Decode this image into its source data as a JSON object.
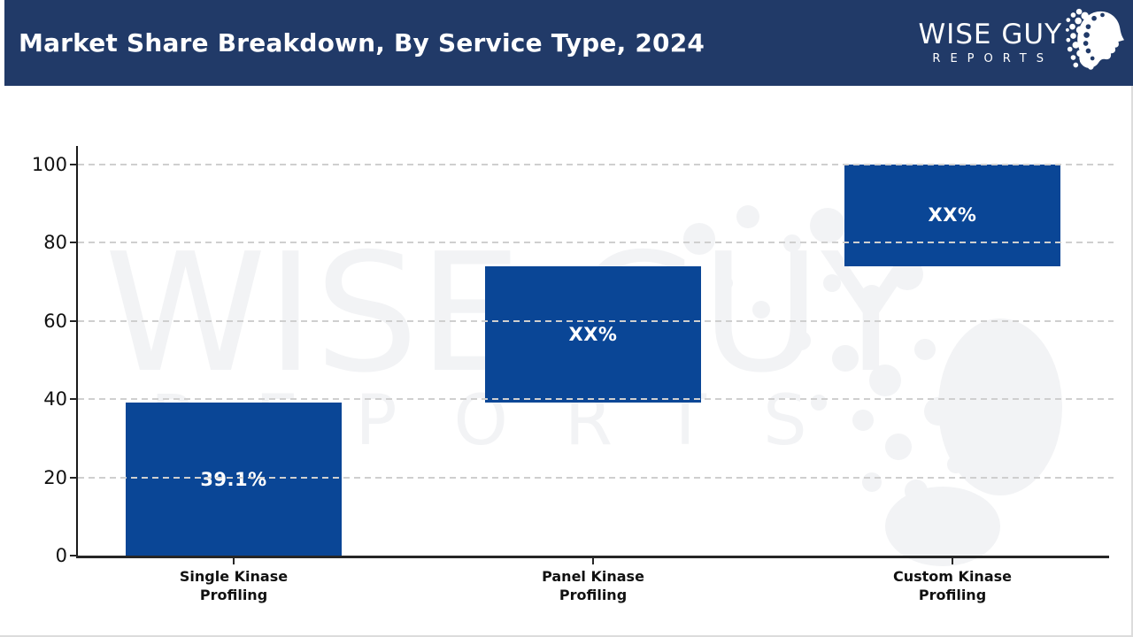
{
  "header": {
    "title": "Market Share Breakdown, By Service Type, 2024",
    "logo": {
      "line1": "WISE GUY",
      "line2": "REPORTS"
    }
  },
  "watermark": {
    "line1": "WISE GUY",
    "line2": "REPORTS"
  },
  "chart_data": {
    "type": "bar",
    "variant": "floating-waterfall",
    "title": "Market Share Breakdown, By Service Type, 2024",
    "categories": [
      [
        "Single Kinase",
        "Profiling"
      ],
      [
        "Panel Kinase",
        "Profiling"
      ],
      [
        "Custom Kinase",
        "Profiling"
      ]
    ],
    "series": [
      {
        "name": "Market share (%)",
        "segments": [
          {
            "start": 0,
            "end": 39.1,
            "label": "39.1%"
          },
          {
            "start": 39.1,
            "end": 74,
            "label": "XX%"
          },
          {
            "start": 74,
            "end": 100,
            "label": "XX%"
          }
        ]
      }
    ],
    "ylim": [
      0,
      100
    ],
    "yticks": [
      0,
      20,
      40,
      60,
      80,
      100
    ],
    "grid": "horizontal-dashed",
    "legend": "none",
    "bar_color": "#0a4696",
    "bar_label_color": "#ffffff"
  },
  "colors": {
    "header_bg": "#213a68",
    "bar": "#0a4696",
    "grid": "#cfcfcf",
    "axis": "#262626",
    "watermark": "#f2f3f5",
    "page_border": "#dcdcdc"
  }
}
